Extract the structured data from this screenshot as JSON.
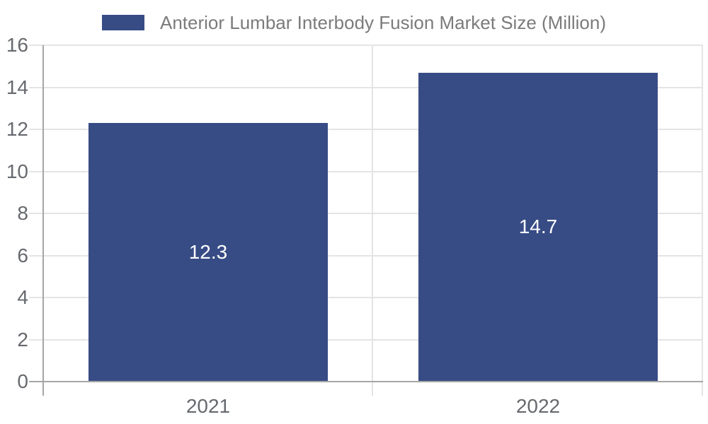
{
  "chart_data": {
    "type": "bar",
    "title": "Anterior Lumbar Interbody Fusion Market Size (Million)",
    "legend": [
      "Anterior Lumbar Interbody Fusion Market Size (Million)"
    ],
    "legend_position": "top-center",
    "categories": [
      "2021",
      "2022"
    ],
    "series": [
      {
        "name": "Anterior Lumbar Interbody Fusion Market Size (Million)",
        "values": [
          12.3,
          14.7
        ],
        "labels": [
          "12.3",
          "14.7"
        ],
        "label_position": "inside-center",
        "color": "#374B85"
      }
    ],
    "xlabel": "",
    "ylabel": "",
    "ylim": [
      0,
      16
    ],
    "ytick_step": 2,
    "yticks": [
      0,
      2,
      4,
      6,
      8,
      10,
      12,
      14,
      16
    ],
    "grid": true,
    "bar_width_fraction": 0.725
  },
  "colors": {
    "bar": "#374B85",
    "bar_label": "#ffffff",
    "axis_line": "#a6a6a6",
    "gridline": "#e4e4e4",
    "axis_text": "#66696e",
    "legend_text": "#7b7b7b",
    "background": "#ffffff"
  }
}
